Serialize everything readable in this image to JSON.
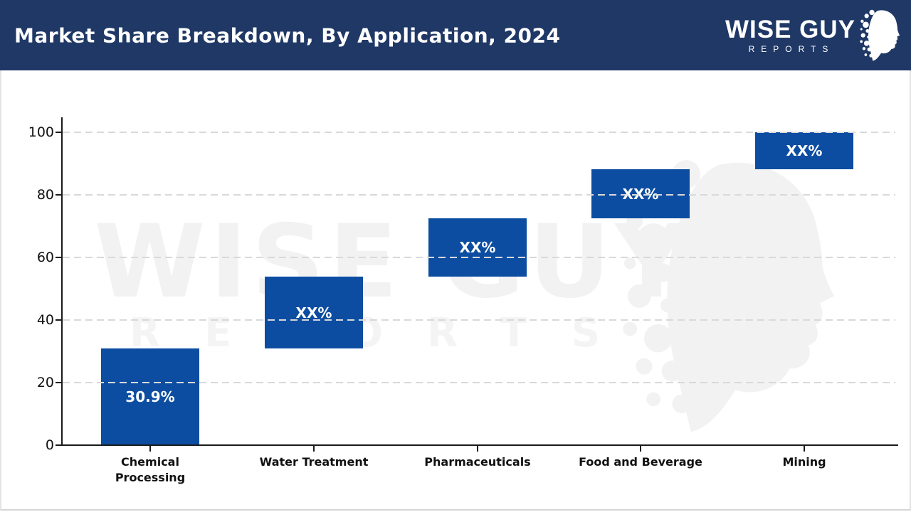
{
  "header": {
    "title": "Market Share Breakdown, By Application, 2024",
    "background_color": "#1f3866",
    "logo": {
      "line1": "WISE GUY",
      "line2": "REPORTS"
    }
  },
  "watermark": {
    "line1": "WISE GUY",
    "line2": "REPORTS"
  },
  "chart_data": {
    "type": "bar",
    "subtype": "waterfall",
    "title": "Market Share Breakdown, By Application, 2024",
    "categories": [
      "Chemical Processing",
      "Water Treatment",
      "Pharmaceuticals",
      "Food and Beverage",
      "Mining"
    ],
    "categories_wrapped": [
      "Chemical\nProcessing",
      "Water Treatment",
      "Pharmaceuticals",
      "Food and Beverage",
      "Mining"
    ],
    "series": [
      {
        "name": "Market share (%)",
        "segments": [
          {
            "start": 0,
            "end": 30.9,
            "label": "30.9%"
          },
          {
            "start": 30.9,
            "end": 53.9,
            "label": "XX%"
          },
          {
            "start": 53.9,
            "end": 72.5,
            "label": "XX%"
          },
          {
            "start": 72.5,
            "end": 88.1,
            "label": "XX%"
          },
          {
            "start": 88.1,
            "end": 100,
            "label": "XX%"
          }
        ]
      }
    ],
    "xlabel": "",
    "ylabel": "",
    "ylim": [
      0,
      104
    ],
    "yticks": [
      0,
      20,
      40,
      60,
      80,
      100
    ],
    "grid": "horizontal-dashed",
    "legend": "none",
    "bar_color": "#0c4da2",
    "bar_label_color": "#ffffff",
    "axis_color": "#1a1a1a",
    "grid_color": "#d9d9d9"
  }
}
